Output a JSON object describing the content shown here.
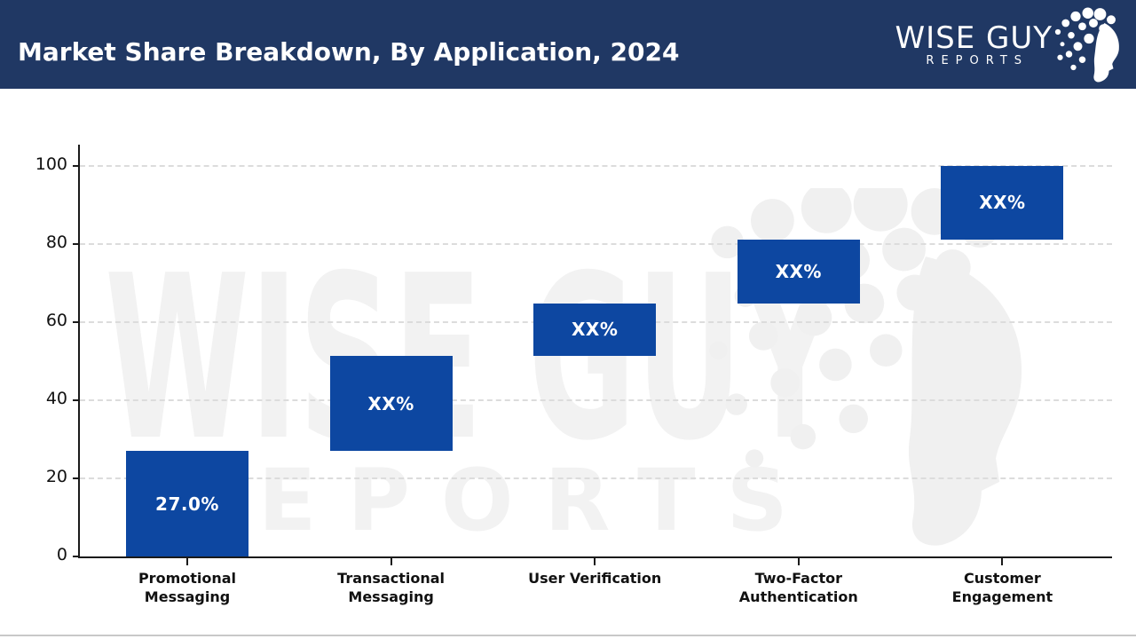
{
  "header": {
    "title": "Market Share Breakdown, By Application, 2024",
    "bg_color": "#203864",
    "logo": {
      "line1": "WISE GUY",
      "line2": "REPORTS"
    }
  },
  "watermark": {
    "line1": "WISE GUY",
    "line2": "REPORTS"
  },
  "chart_data": {
    "type": "bar",
    "subtype": "floating-segment-waterfall",
    "title": "Market Share Breakdown, By Application, 2024",
    "categories": [
      "Promotional\nMessaging",
      "Transactional\nMessaging",
      "User Verification",
      "Two-Factor\nAuthentication",
      "Customer\nEngagement"
    ],
    "segments": [
      {
        "category": "Promotional Messaging",
        "start": 0,
        "end": 27,
        "label": "27.0%"
      },
      {
        "category": "Transactional Messaging",
        "start": 27,
        "end": 51.3,
        "label": "XX%"
      },
      {
        "category": "User Verification",
        "start": 51.3,
        "end": 64.7,
        "label": "XX%"
      },
      {
        "category": "Two-Factor Authentication",
        "start": 64.7,
        "end": 81,
        "label": "XX%"
      },
      {
        "category": "Customer Engagement",
        "start": 81,
        "end": 100,
        "label": "XX%"
      }
    ],
    "xlabel": "",
    "ylabel": "",
    "yticks": [
      0,
      20,
      40,
      60,
      80,
      100
    ],
    "ylim": [
      0,
      105
    ],
    "grid": "horizontal-dashed",
    "legend": "none",
    "bar_color": "#0d47a1",
    "bar_label_color": "#ffffff",
    "axis_color": "#1a1a1a",
    "gridline_color": "#dcdcdc"
  }
}
